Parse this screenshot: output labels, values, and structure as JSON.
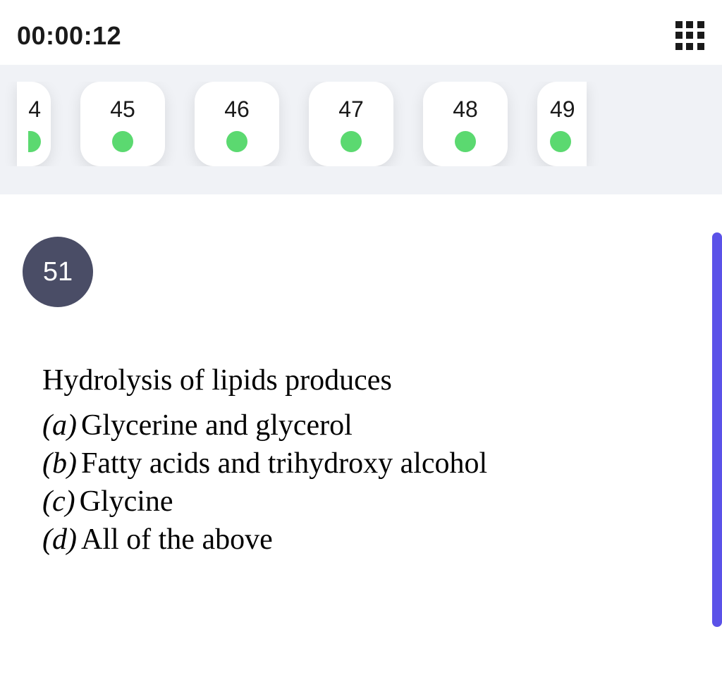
{
  "header": {
    "timer": "00:00:12"
  },
  "nav": {
    "background_color": "#f0f2f6",
    "dot_color": "#5bd970",
    "items": [
      {
        "number": "4",
        "partial": "left"
      },
      {
        "number": "45",
        "partial": "none"
      },
      {
        "number": "46",
        "partial": "none"
      },
      {
        "number": "47",
        "partial": "none"
      },
      {
        "number": "48",
        "partial": "none"
      },
      {
        "number": "49",
        "partial": "right"
      }
    ]
  },
  "question": {
    "badge_number": "51",
    "badge_bg_color": "#4a4d66",
    "text": "Hydrolysis of lipids produces",
    "options": [
      {
        "label": "(a)",
        "text": "Glycerine and glycerol"
      },
      {
        "label": "(b)",
        "text": "Fatty acids and trihydroxy alcohol"
      },
      {
        "label": "(c)",
        "text": "Glycine"
      },
      {
        "label": "(d)",
        "text": "All of the above"
      }
    ]
  },
  "scrollbar_color": "#5b52e8"
}
